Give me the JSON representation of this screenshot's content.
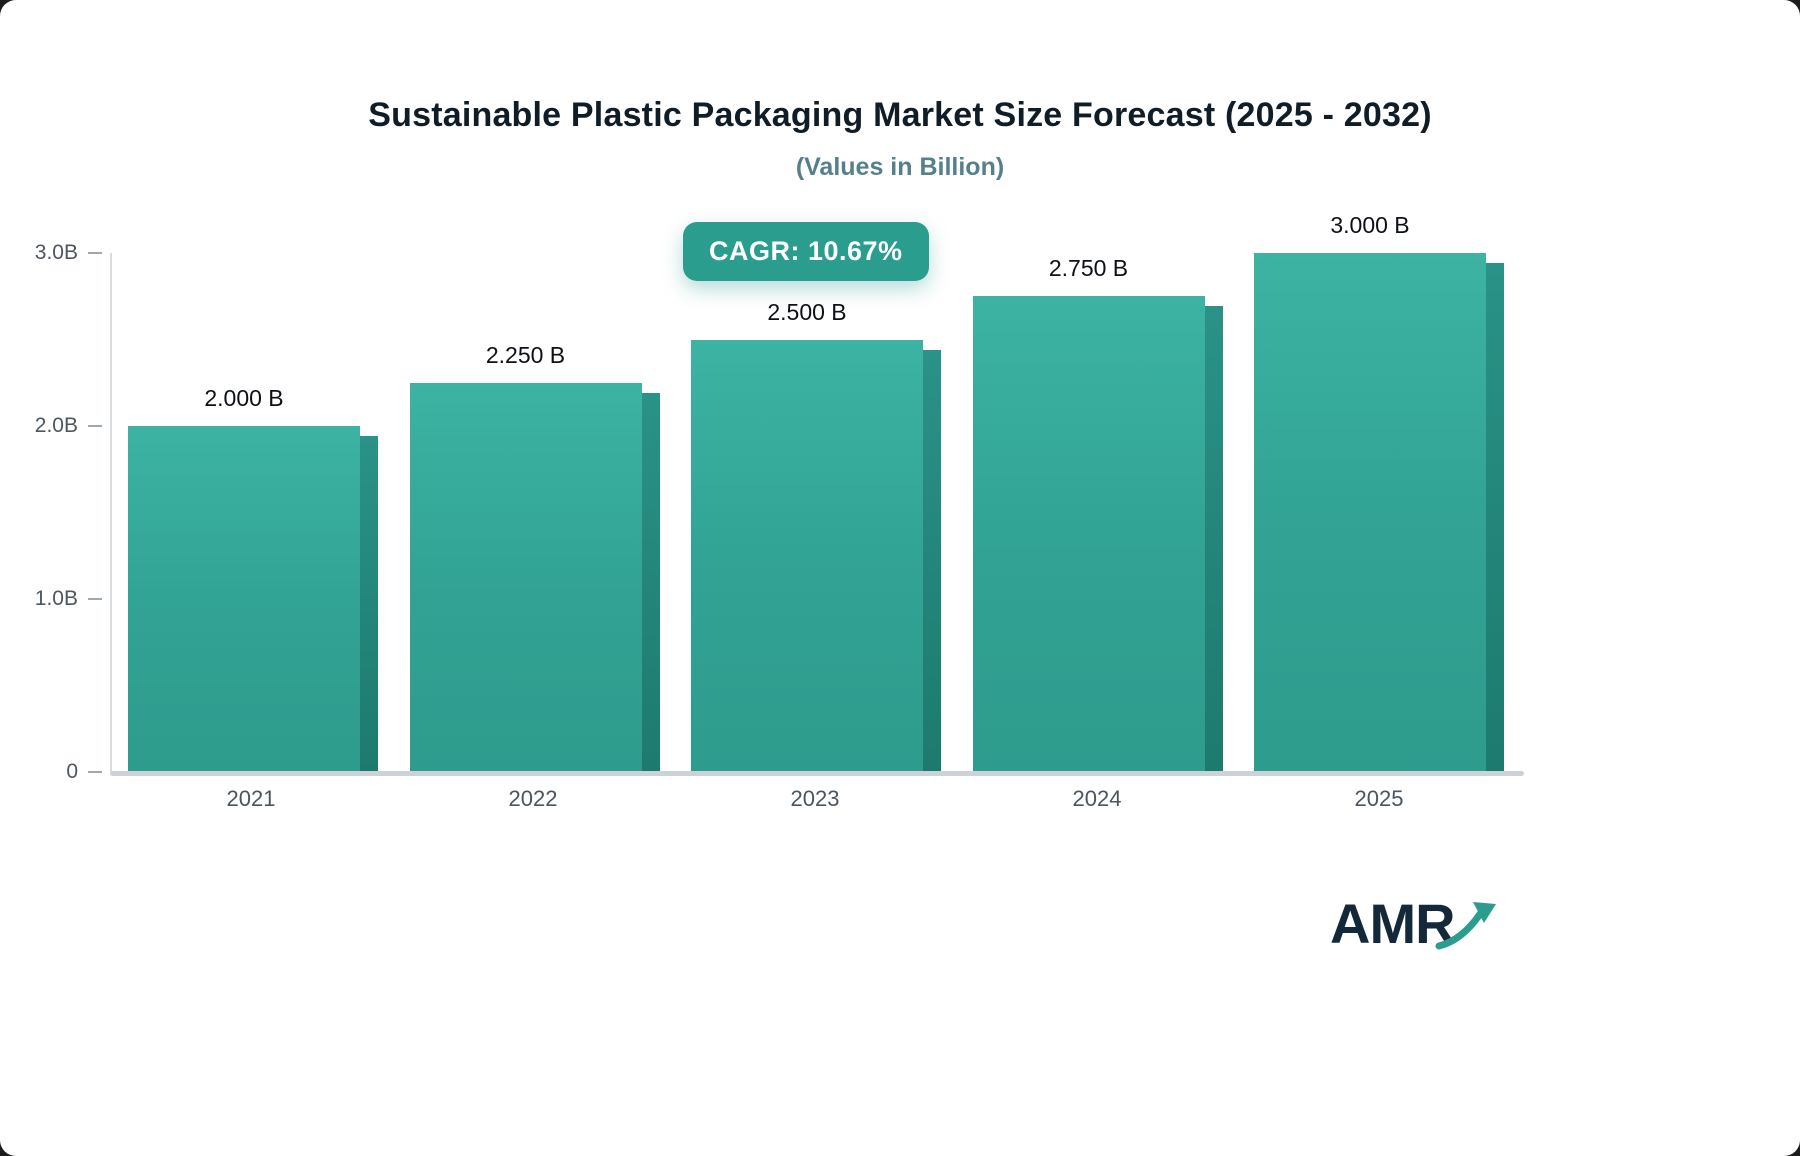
{
  "title": "Sustainable Plastic Packaging Market Size Forecast (2025 - 2032)",
  "subtitle": "(Values in Billion)",
  "cagr_badge": "CAGR: 10.67%",
  "logo": {
    "text": "AMR"
  },
  "colors": {
    "bar_top": "#3cb3a3",
    "bar_bottom": "#2e9c8d",
    "bar_side": "#1d7a6e",
    "badge": "#2a9d8f",
    "title_text": "#101d27",
    "subtitle_text": "#55808a",
    "axis_text": "#4d5761"
  },
  "chart_data": {
    "type": "bar",
    "title": "Sustainable Plastic Packaging Market Size Forecast (2025 - 2032)",
    "subtitle": "(Values in Billion)",
    "categories": [
      "2021",
      "2022",
      "2023",
      "2024",
      "2025"
    ],
    "values": [
      2.0,
      2.25,
      2.5,
      2.75,
      3.0
    ],
    "bar_labels": [
      "2.000 B",
      "2.250 B",
      "2.500 B",
      "2.750 B",
      "3.000 B"
    ],
    "cagr": "10.67%",
    "xlabel": "",
    "ylabel": "",
    "ylim": [
      0,
      3
    ],
    "grid": false,
    "yticks": [
      {
        "value": 0,
        "label": "0"
      },
      {
        "value": 1,
        "label": "1.0B"
      },
      {
        "value": 2,
        "label": "2.0B"
      },
      {
        "value": 3,
        "label": "3.0B"
      }
    ]
  }
}
